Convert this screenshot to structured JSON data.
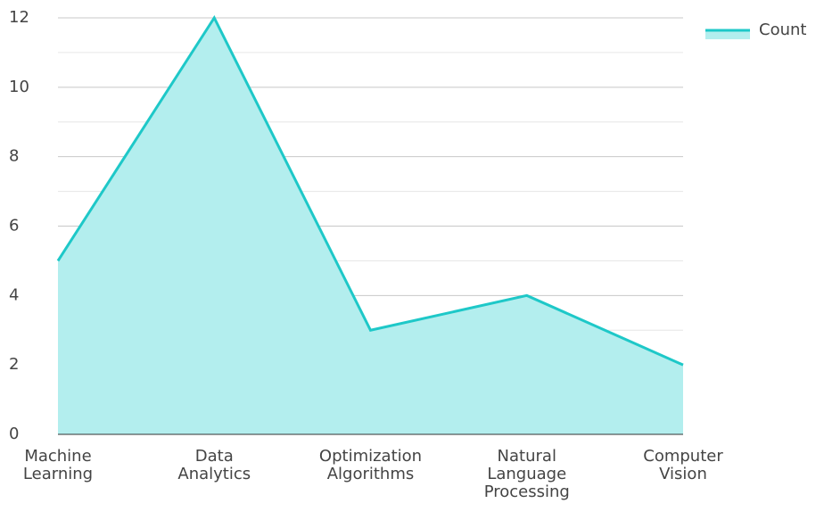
{
  "chart_data": {
    "type": "area",
    "categories": [
      "Machine Learning",
      "Data Analytics",
      "Optimization Algorithms",
      "Natural Language Processing",
      "Computer Vision"
    ],
    "series": [
      {
        "name": "Count",
        "color": "#1ec8c8",
        "fill": "#b3eeee",
        "values": [
          5,
          12,
          3,
          4,
          2
        ]
      }
    ],
    "ylim": [
      0,
      12
    ],
    "yticks": [
      0,
      2,
      4,
      6,
      8,
      10,
      12
    ],
    "minor_yticks": [
      1,
      3,
      5,
      7,
      9,
      11
    ],
    "grid": true,
    "legend": "top-right"
  }
}
